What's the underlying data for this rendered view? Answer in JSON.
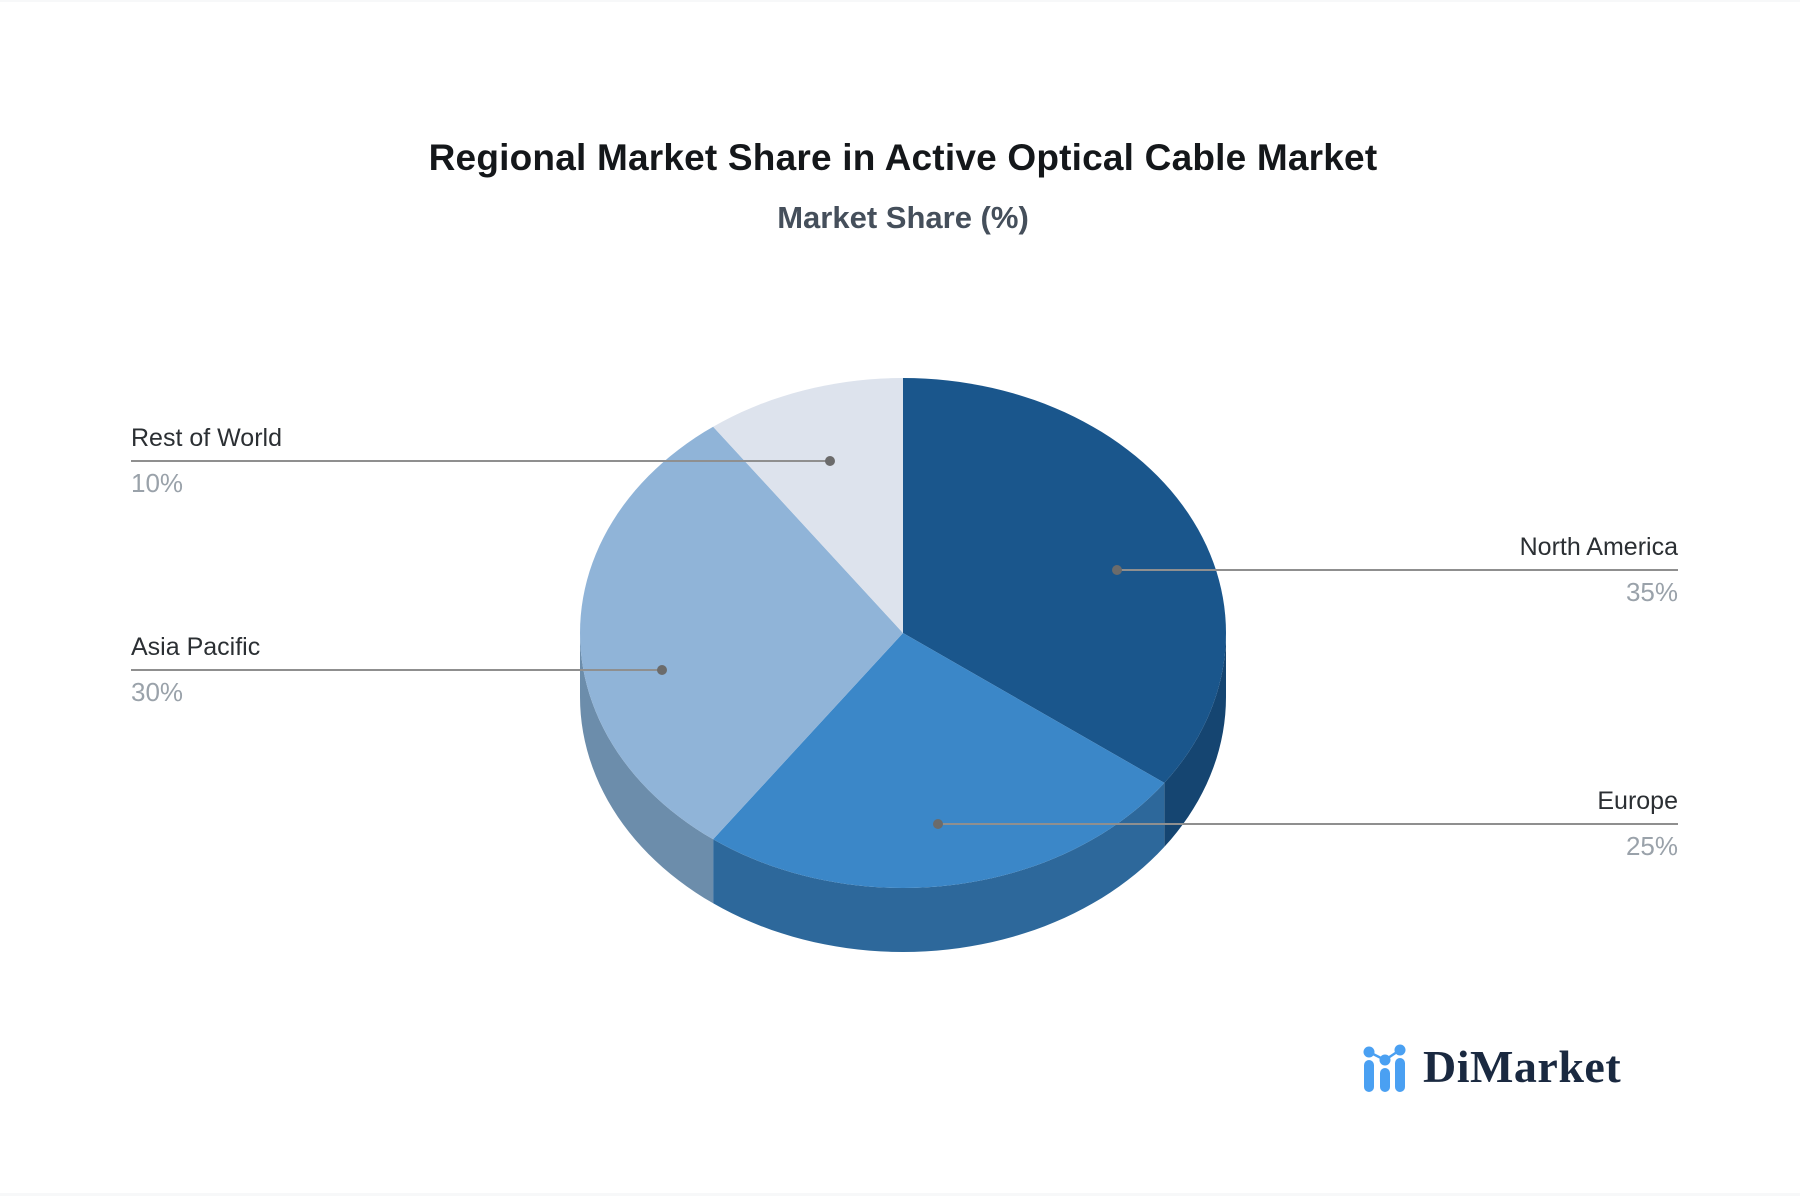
{
  "page": {
    "background": "#ffffff"
  },
  "chart_data": {
    "type": "pie",
    "title": "Regional Market Share in Active Optical Cable Market",
    "subtitle": "Market Share (%)",
    "unit": "%",
    "start_angle_deg": 0,
    "clockwise": true,
    "style_3d": true,
    "slices": [
      {
        "label": "North America",
        "value": 35,
        "value_label": "35%",
        "color": "#1a568c",
        "side_color": "#154571",
        "label_side": "right"
      },
      {
        "label": "Europe",
        "value": 25,
        "value_label": "25%",
        "color": "#3b87c8",
        "side_color": "#2d689b",
        "label_side": "right"
      },
      {
        "label": "Asia Pacific",
        "value": 30,
        "value_label": "30%",
        "color": "#90b4d8",
        "side_color": "#6c8dab",
        "label_side": "left"
      },
      {
        "label": "Rest of World",
        "value": 10,
        "value_label": "10%",
        "color": "#dde3ed",
        "side_color": "#c2cddc",
        "label_side": "left"
      }
    ],
    "label_text_color": "#2b2f33",
    "value_text_color": "#9aa2aa",
    "leader_line_color": "#8f8f8f",
    "anchor_dot_color": "#6b6b6b",
    "legend_position": "callout-labels"
  },
  "branding": {
    "logo_text": "DiMarket",
    "logo_icon": "bar-chart-trend-icon",
    "logo_icon_color": "#4aa0f2",
    "logo_text_color": "#1a2940"
  }
}
